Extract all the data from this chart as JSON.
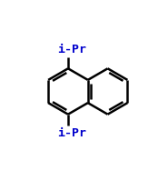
{
  "bg_color": "#ffffff",
  "line_color": "#000000",
  "label_color": "#0000cd",
  "label_font": "monospace",
  "label_fontsize": 9.5,
  "line_width": 1.8,
  "fig_width": 1.63,
  "fig_height": 1.99,
  "dpi": 100,
  "label_top": "i-Pr",
  "label_bottom": "i-Pr",
  "s": 1.0
}
